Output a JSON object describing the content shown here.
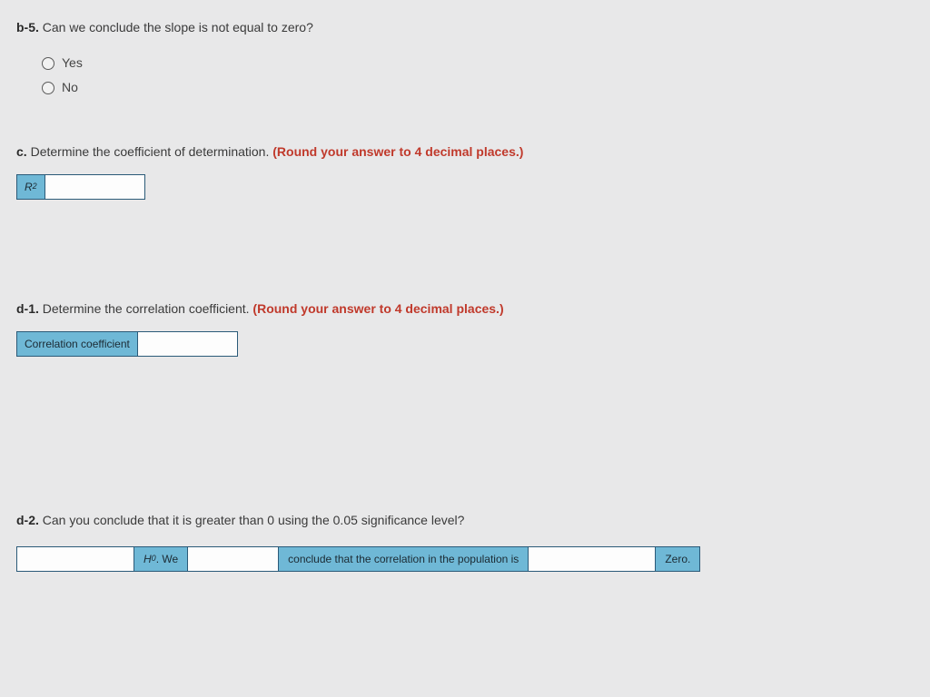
{
  "b5": {
    "label": "b-5.",
    "text": "Can we conclude the slope is not equal to zero?",
    "options": {
      "yes": "Yes",
      "no": "No"
    }
  },
  "c": {
    "label": "c.",
    "text": "Determine the coefficient of determination.",
    "hint": "(Round your answer to 4 decimal places.)",
    "field_label_html": "R",
    "field_sub": "2",
    "value": ""
  },
  "d1": {
    "label": "d-1.",
    "text": "Determine the correlation coefficient.",
    "hint": "(Round your answer to 4 decimal places.)",
    "field_label": "Correlation coefficient",
    "value": ""
  },
  "d2": {
    "label": "d-2.",
    "text": "Can you conclude that it is greater than 0 using the 0.05 significance level?",
    "blank1": "",
    "seg1_a": "H",
    "seg1_sub": "0",
    "seg1_b": ". We",
    "blank2": "",
    "seg2": "conclude that the correlation in the population is",
    "blank3": "",
    "seg3": "Zero."
  },
  "colors": {
    "accent_bg": "#6fb8d6",
    "accent_border": "#2b5a78",
    "hint": "#c0392b",
    "page_bg": "#e8e8e9"
  }
}
